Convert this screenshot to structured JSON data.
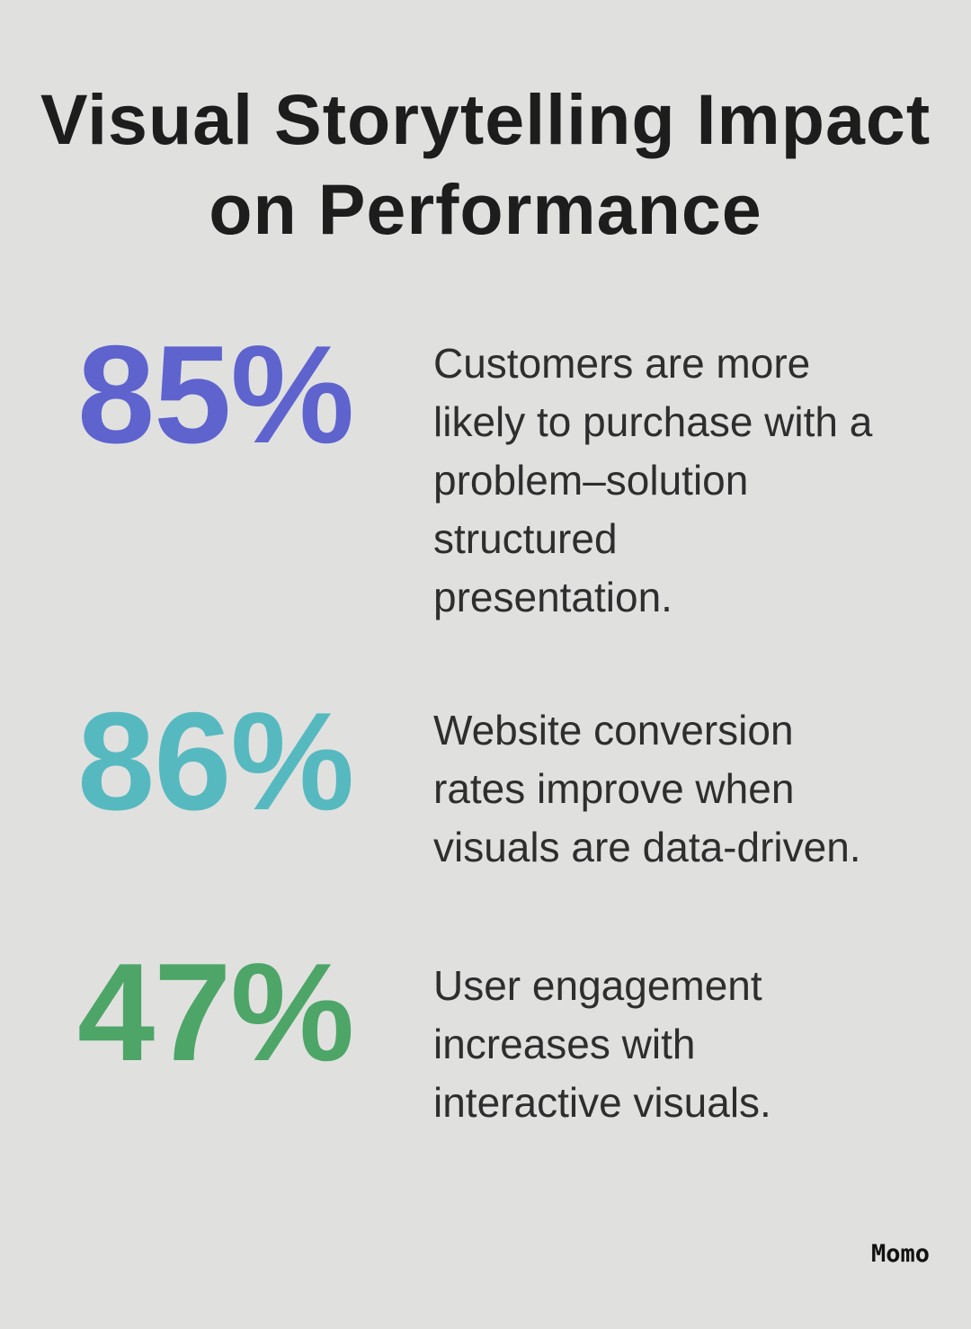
{
  "page": {
    "title": "Visual Storytelling Impact\non Performance",
    "brand": "Momo",
    "background_color": "#e0e1df",
    "title_color": "#1d1d1d",
    "body_text_color": "#2e2e2e"
  },
  "stats": [
    {
      "value": "85%",
      "color": "#5e63ce",
      "description": "Customers are more\nlikely to purchase with a\nproblem–solution\nstructured\npresentation."
    },
    {
      "value": "86%",
      "color": "#57b9c0",
      "description": "Website conversion\nrates improve when\nvisuals are data-driven."
    },
    {
      "value": "47%",
      "color": "#4ea568",
      "description": "User engagement\nincreases with\ninteractive visuals."
    }
  ],
  "chart_data": {
    "type": "table",
    "title": "Visual Storytelling Impact on Performance",
    "categories": [
      "Customers are more likely to purchase with a problem–solution structured presentation.",
      "Website conversion rates improve when visuals are data-driven.",
      "User engagement increases with interactive visuals."
    ],
    "values": [
      85,
      86,
      47
    ],
    "value_unit": "%",
    "series_colors": [
      "#5e63ce",
      "#57b9c0",
      "#4ea568"
    ],
    "legend_position": "none",
    "grid": false
  }
}
